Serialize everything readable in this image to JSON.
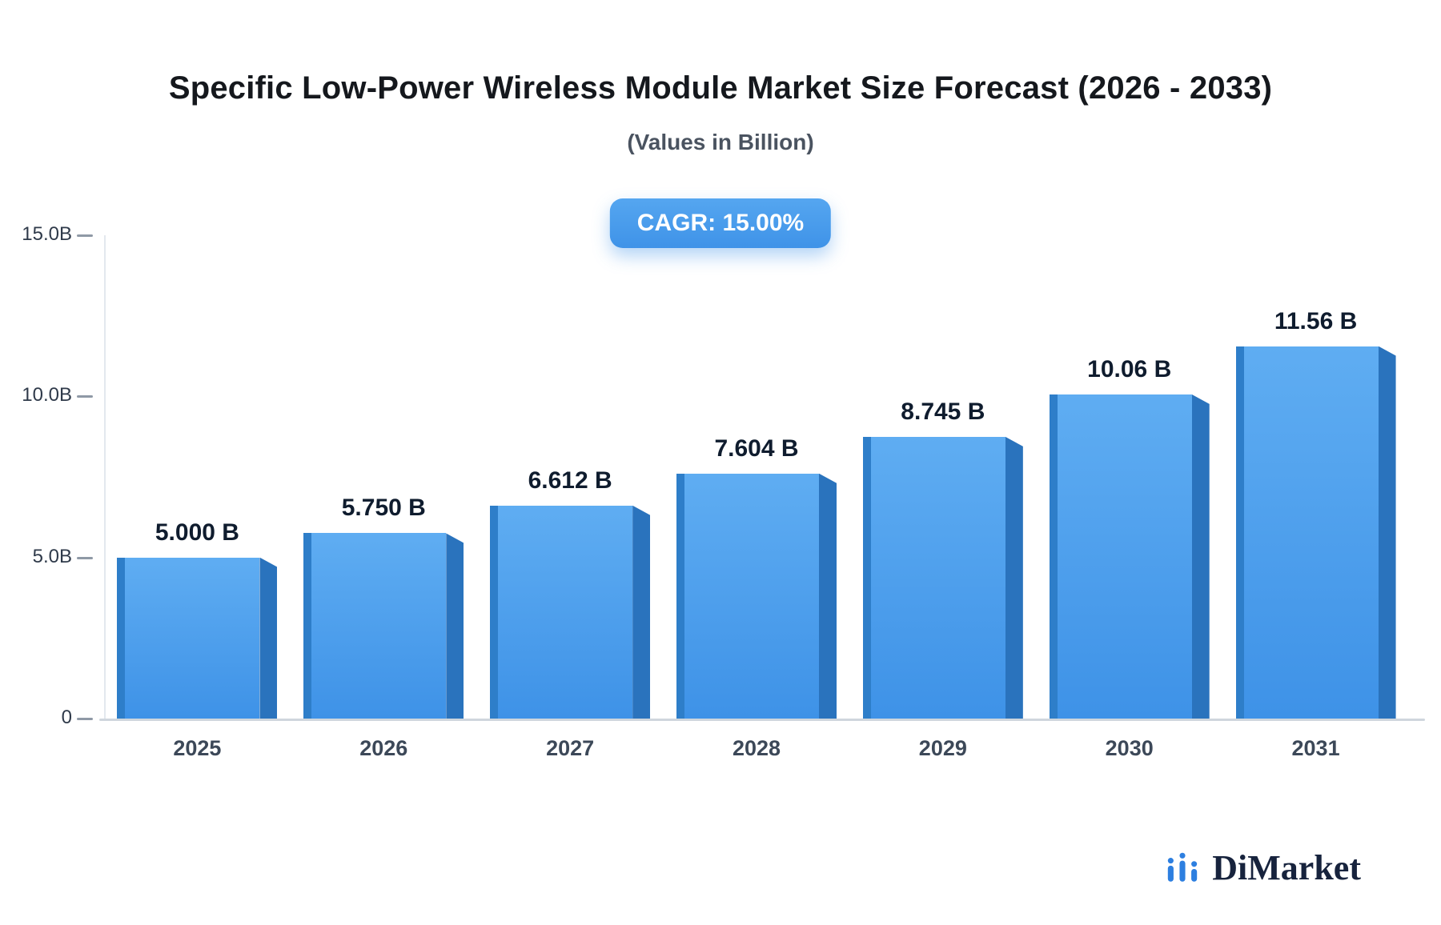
{
  "header": {
    "title": "Specific Low-Power Wireless Module Market Size Forecast (2026 - 2033)",
    "subtitle": "(Values in Billion)",
    "cagr_badge": "CAGR: 15.00%"
  },
  "footer": {
    "brand": "DiMarket"
  },
  "colors": {
    "bar_top": "#5fadf2",
    "bar_bottom": "#3e92e7",
    "bar_left_edge": "#2e7ec9",
    "bar_depth_face": "#2a73bd",
    "badge_blue": "#4a9eea",
    "axis_gray": "#cfd6dd",
    "logo_blue": "#2d7fe0",
    "text_dark": "#0f1c2e"
  },
  "chart_data": {
    "type": "bar",
    "title": "Specific Low-Power Wireless Module Market Size Forecast (2026 - 2033)",
    "subtitle": "(Values in Billion)",
    "annotation": "CAGR: 15.00%",
    "categories": [
      "2025",
      "2026",
      "2027",
      "2028",
      "2029",
      "2030",
      "2031"
    ],
    "values": [
      5.0,
      5.75,
      6.612,
      7.604,
      8.745,
      10.06,
      11.56
    ],
    "value_labels": [
      "5.000 B",
      "5.750 B",
      "6.612 B",
      "7.604 B",
      "8.745 B",
      "10.06 B",
      "11.56 B"
    ],
    "xlabel": "",
    "ylabel": "",
    "ylim": [
      0,
      15
    ],
    "yticks": [
      {
        "value": 0,
        "label": "0"
      },
      {
        "value": 5,
        "label": "5.0B"
      },
      {
        "value": 10,
        "label": "10.0B"
      },
      {
        "value": 15,
        "label": "15.0B"
      }
    ],
    "grid": false,
    "legend": false
  }
}
